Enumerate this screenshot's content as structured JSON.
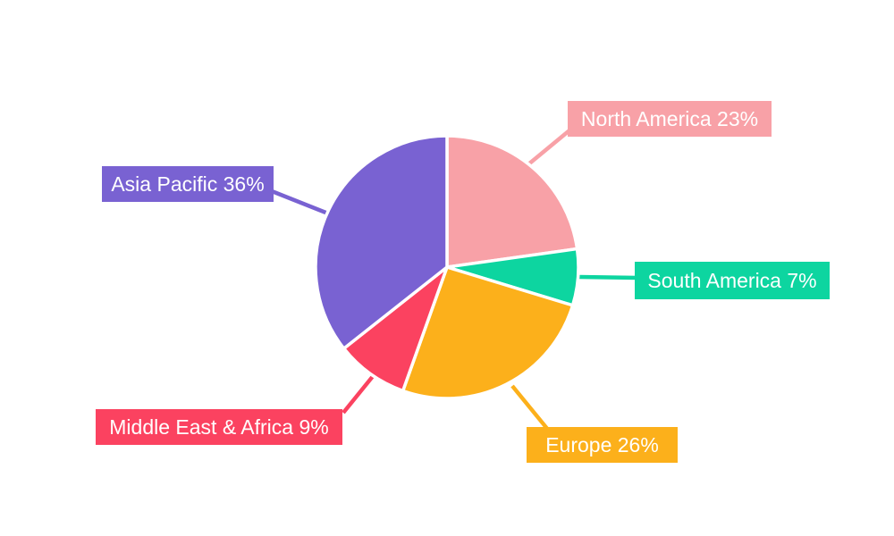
{
  "chart_data": {
    "type": "pie",
    "title": "",
    "background_color": "#ffffff",
    "label_text_color": "#ffffff",
    "start_angle": "12-o-clock",
    "direction": "clockwise",
    "legend_position": "none",
    "grid": false,
    "slices": [
      {
        "label": "North America",
        "value": 23,
        "display": "North America 23%",
        "color": "#F8A1A7"
      },
      {
        "label": "South America",
        "value": 7,
        "display": "South America 7%",
        "color": "#0DD5A0"
      },
      {
        "label": "Europe",
        "value": 26,
        "display": "Europe 26%",
        "color": "#FCB01B"
      },
      {
        "label": "Middle East & Africa",
        "value": 9,
        "display": "Middle East & Africa 9%",
        "color": "#FB4260"
      },
      {
        "label": "Asia Pacific",
        "value": 36,
        "display": "Asia Pacific 36%",
        "color": "#7962D2"
      }
    ]
  }
}
